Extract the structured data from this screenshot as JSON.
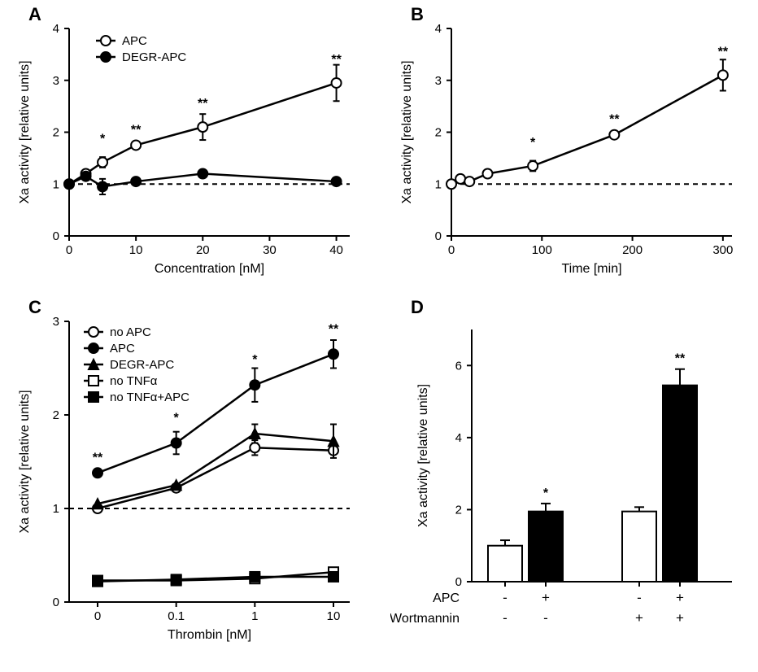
{
  "colors": {
    "axis": "#000000",
    "bg": "#ffffff",
    "marker_open_fill": "#ffffff",
    "marker_fill": "#000000",
    "bar_open_fill": "#ffffff",
    "bar_fill": "#000000"
  },
  "fontsizes": {
    "panel_label": 22,
    "axis_label": 16,
    "tick": 14,
    "legend": 14,
    "sig": 16
  },
  "panelA": {
    "label": "A",
    "type": "line",
    "xlabel": "Concentration [nM]",
    "ylabel": "Xa activity [relative units]",
    "xlim": [
      0,
      42
    ],
    "ylim": [
      0,
      4
    ],
    "xticks": [
      0,
      10,
      20,
      30,
      40
    ],
    "yticks": [
      0,
      1,
      2,
      3,
      4
    ],
    "baseline": 1,
    "series": [
      {
        "name": "APC",
        "marker": "circle",
        "fill": "#ffffff",
        "stroke": "#000000",
        "data": [
          {
            "x": 0,
            "y": 1.0
          },
          {
            "x": 2.5,
            "y": 1.2
          },
          {
            "x": 5,
            "y": 1.42,
            "sig": "*",
            "err": 0.1
          },
          {
            "x": 10,
            "y": 1.75,
            "sig": "**"
          },
          {
            "x": 20,
            "y": 2.1,
            "sig": "**",
            "err": 0.25
          },
          {
            "x": 40,
            "y": 2.95,
            "sig": "**",
            "err": 0.35
          }
        ]
      },
      {
        "name": "DEGR-APC",
        "marker": "circle",
        "fill": "#000000",
        "stroke": "#000000",
        "data": [
          {
            "x": 0,
            "y": 1.0
          },
          {
            "x": 2.5,
            "y": 1.15
          },
          {
            "x": 5,
            "y": 0.95,
            "err": 0.15
          },
          {
            "x": 10,
            "y": 1.05
          },
          {
            "x": 20,
            "y": 1.2
          },
          {
            "x": 40,
            "y": 1.05
          }
        ]
      }
    ]
  },
  "panelB": {
    "label": "B",
    "type": "line",
    "xlabel": "Time [min]",
    "ylabel": "Xa activity [relative units]",
    "xlim": [
      0,
      310
    ],
    "ylim": [
      0,
      4
    ],
    "xticks": [
      0,
      100,
      200,
      300
    ],
    "yticks": [
      0,
      1,
      2,
      3,
      4
    ],
    "baseline": 1,
    "series": [
      {
        "name": "APC",
        "marker": "circle",
        "fill": "#ffffff",
        "stroke": "#000000",
        "data": [
          {
            "x": 0,
            "y": 1.0
          },
          {
            "x": 10,
            "y": 1.1
          },
          {
            "x": 20,
            "y": 1.05
          },
          {
            "x": 40,
            "y": 1.2
          },
          {
            "x": 90,
            "y": 1.35,
            "sig": "*",
            "err": 0.1
          },
          {
            "x": 180,
            "y": 1.95,
            "sig": "**"
          },
          {
            "x": 300,
            "y": 3.1,
            "sig": "**",
            "err": 0.3
          }
        ]
      }
    ]
  },
  "panelC": {
    "label": "C",
    "type": "line-log",
    "xlabel": "Thrombin [nM]",
    "ylabel": "Xa activity [relative units]",
    "xcats": [
      "0",
      "0.1",
      "1",
      "10"
    ],
    "ylim": [
      0,
      3
    ],
    "yticks": [
      0,
      1,
      2,
      3
    ],
    "baseline": 1,
    "legend_pos": "top-left-inside",
    "series": [
      {
        "name": "no APC",
        "marker": "circle",
        "fill": "#ffffff",
        "stroke": "#000000",
        "data": [
          {
            "i": 0,
            "y": 1.0
          },
          {
            "i": 1,
            "y": 1.22
          },
          {
            "i": 2,
            "y": 1.65,
            "err": 0.08
          },
          {
            "i": 3,
            "y": 1.62
          }
        ]
      },
      {
        "name": "APC",
        "marker": "circle",
        "fill": "#000000",
        "stroke": "#000000",
        "data": [
          {
            "i": 0,
            "y": 1.38,
            "sig": "**"
          },
          {
            "i": 1,
            "y": 1.7,
            "sig": "*",
            "err": 0.12
          },
          {
            "i": 2,
            "y": 2.32,
            "sig": "*",
            "err": 0.18
          },
          {
            "i": 3,
            "y": 2.65,
            "sig": "**",
            "err": 0.15
          }
        ]
      },
      {
        "name": "DEGR-APC",
        "marker": "triangle",
        "fill": "#000000",
        "stroke": "#000000",
        "data": [
          {
            "i": 0,
            "y": 1.05
          },
          {
            "i": 1,
            "y": 1.25
          },
          {
            "i": 2,
            "y": 1.8,
            "err": 0.1
          },
          {
            "i": 3,
            "y": 1.72,
            "err": 0.18
          }
        ]
      },
      {
        "name": "no TNFα",
        "marker": "square",
        "fill": "#ffffff",
        "stroke": "#000000",
        "data": [
          {
            "i": 0,
            "y": 0.23
          },
          {
            "i": 1,
            "y": 0.23
          },
          {
            "i": 2,
            "y": 0.25
          },
          {
            "i": 3,
            "y": 0.32
          }
        ]
      },
      {
        "name": "no TNFα+APC",
        "marker": "square",
        "fill": "#000000",
        "stroke": "#000000",
        "data": [
          {
            "i": 0,
            "y": 0.22
          },
          {
            "i": 1,
            "y": 0.24
          },
          {
            "i": 2,
            "y": 0.27
          },
          {
            "i": 3,
            "y": 0.27
          }
        ]
      }
    ]
  },
  "panelD": {
    "label": "D",
    "type": "bar",
    "ylabel": "Xa activity [relative units]",
    "ylim": [
      0,
      7
    ],
    "yticks": [
      0,
      2,
      4,
      6
    ],
    "group_gap": 1.0,
    "bar_width": 0.7,
    "groups": [
      {
        "bars": [
          {
            "fill": "#ffffff",
            "y": 1.0,
            "err": 0.15,
            "apc": "-",
            "wort": "-"
          },
          {
            "fill": "#000000",
            "y": 1.95,
            "err": 0.22,
            "sig": "*",
            "apc": "+",
            "wort": "-"
          }
        ]
      },
      {
        "bars": [
          {
            "fill": "#ffffff",
            "y": 1.95,
            "err": 0.12,
            "apc": "-",
            "wort": "+"
          },
          {
            "fill": "#000000",
            "y": 5.45,
            "err": 0.45,
            "sig": "**",
            "apc": "+",
            "wort": "+"
          }
        ]
      }
    ],
    "row_labels": [
      "APC",
      "Wortmannin"
    ]
  }
}
